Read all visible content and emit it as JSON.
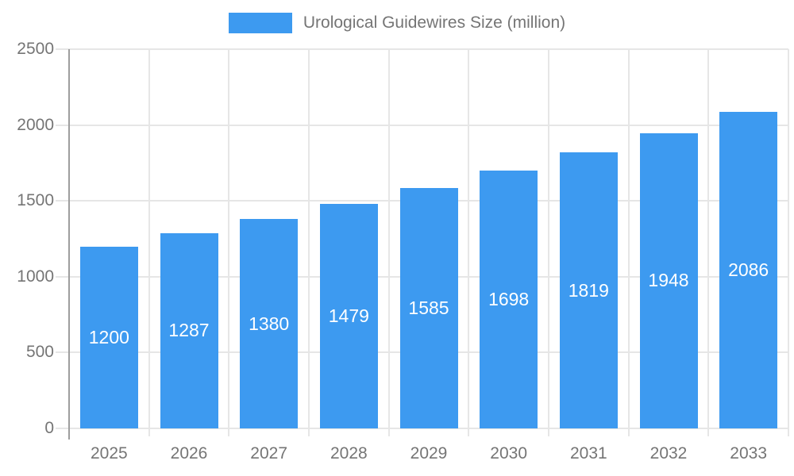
{
  "legend": {
    "label": "Urological Guidewires Size (million)"
  },
  "colors": {
    "bar": "#3D9AF0",
    "grid": "#e6e6e6",
    "axis": "#9e9e9e",
    "tick_text": "#757575",
    "bar_value_text": "#ffffff",
    "background": "#ffffff"
  },
  "chart_data": {
    "type": "bar",
    "title": "Urological Guidewires Size (million)",
    "categories": [
      "2025",
      "2026",
      "2027",
      "2028",
      "2029",
      "2030",
      "2031",
      "2032",
      "2033"
    ],
    "values": [
      1200,
      1287,
      1380,
      1479,
      1585,
      1698,
      1819,
      1948,
      2086
    ],
    "xlabel": "",
    "ylabel": "",
    "ylim": [
      0,
      2500
    ],
    "yticks": [
      0,
      500,
      1000,
      1500,
      2000,
      2500
    ],
    "grid": true,
    "legend_position": "top",
    "value_labels": "inside-center"
  }
}
